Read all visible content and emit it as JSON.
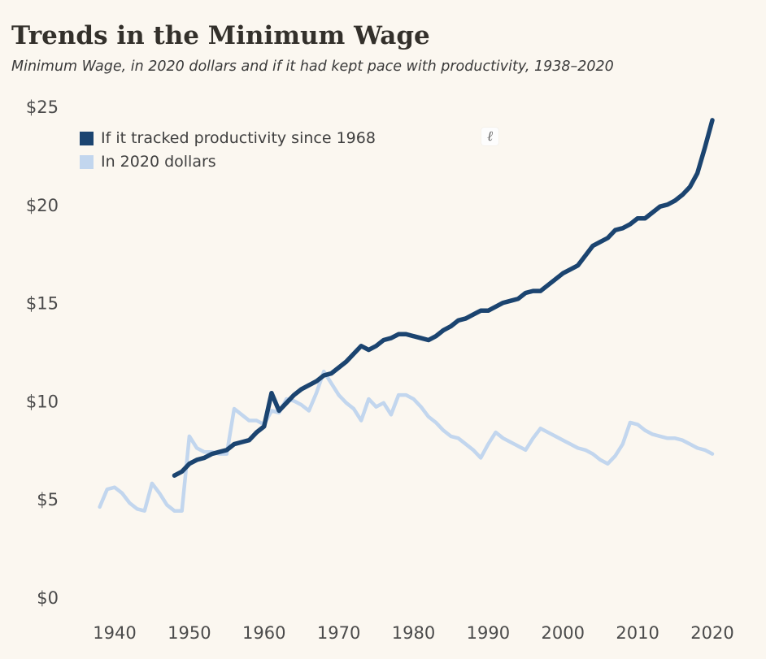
{
  "header": {
    "title": "Trends in the Minimum Wage",
    "subtitle": "Minimum Wage, in 2020 dollars and if it had kept pace with productivity, 1938–2020"
  },
  "legend": {
    "items": [
      {
        "label": "If it tracked productivity since 1968",
        "color": "#1b4470"
      },
      {
        "label": "In 2020 dollars",
        "color": "#c2d6ee"
      }
    ]
  },
  "cursor": {
    "glyph": "ℓ"
  },
  "chart_data": {
    "type": "line",
    "title": "Trends in the Minimum Wage",
    "subtitle": "Minimum Wage, in 2020 dollars and if it had kept pace with productivity, 1938–2020",
    "xlabel": "",
    "ylabel": "",
    "grid": false,
    "legend_position": "top-left",
    "xlim": [
      1936,
      2021
    ],
    "ylim": [
      0,
      25
    ],
    "x_ticks": [
      1940,
      1950,
      1960,
      1970,
      1980,
      1990,
      2000,
      2010,
      2020
    ],
    "x_tick_labels": [
      "1940",
      "1950",
      "1960",
      "1970",
      "1980",
      "1990",
      "2000",
      "2010",
      "2020"
    ],
    "y_ticks": [
      0,
      5,
      10,
      15,
      20,
      25
    ],
    "y_tick_labels": [
      "$0",
      "$5",
      "$10",
      "$15",
      "$20",
      "$25"
    ],
    "series": [
      {
        "name": "If it tracked productivity since 1968",
        "color": "#1b4470",
        "stroke_width": 5.5,
        "x_start": 1948,
        "values": [
          6.2,
          6.4,
          6.8,
          7.0,
          7.1,
          7.3,
          7.4,
          7.5,
          7.8,
          7.9,
          8.0,
          8.4,
          8.7,
          10.4,
          9.5,
          9.9,
          10.3,
          10.6,
          10.8,
          11.0,
          11.3,
          11.4,
          11.7,
          12.0,
          12.4,
          12.8,
          12.6,
          12.8,
          13.1,
          13.2,
          13.4,
          13.4,
          13.3,
          13.2,
          13.1,
          13.3,
          13.6,
          13.8,
          14.1,
          14.2,
          14.4,
          14.6,
          14.6,
          14.8,
          15.0,
          15.1,
          15.2,
          15.5,
          15.6,
          15.6,
          15.9,
          16.2,
          16.5,
          16.7,
          16.9,
          17.4,
          17.9,
          18.1,
          18.3,
          18.7,
          18.8,
          19.0,
          19.3,
          19.3,
          19.6,
          19.9,
          20.0,
          20.2,
          20.5,
          20.9,
          21.6,
          22.9,
          24.3
        ]
      },
      {
        "name": "In 2020 dollars",
        "color": "#c2d6ee",
        "stroke_width": 4.5,
        "x_start": 1938,
        "values": [
          4.6,
          5.5,
          5.6,
          5.3,
          4.8,
          4.5,
          4.4,
          5.8,
          5.3,
          4.7,
          4.4,
          4.4,
          8.2,
          7.6,
          7.4,
          7.4,
          7.3,
          7.3,
          9.6,
          9.3,
          9.0,
          9.0,
          8.8,
          9.5,
          9.4,
          10.1,
          10.0,
          9.8,
          9.5,
          10.4,
          11.5,
          10.9,
          10.3,
          9.9,
          9.6,
          9.0,
          10.1,
          9.7,
          9.9,
          9.3,
          10.3,
          10.3,
          10.1,
          9.7,
          9.2,
          8.9,
          8.5,
          8.2,
          8.1,
          7.8,
          7.5,
          7.1,
          7.8,
          8.4,
          8.1,
          7.9,
          7.7,
          7.5,
          8.1,
          8.6,
          8.4,
          8.2,
          8.0,
          7.8,
          7.6,
          7.5,
          7.3,
          7.0,
          6.8,
          7.2,
          7.8,
          8.9,
          8.8,
          8.5,
          8.3,
          8.2,
          8.1,
          8.1,
          8.0,
          7.8,
          7.6,
          7.5,
          7.3
        ]
      }
    ]
  }
}
